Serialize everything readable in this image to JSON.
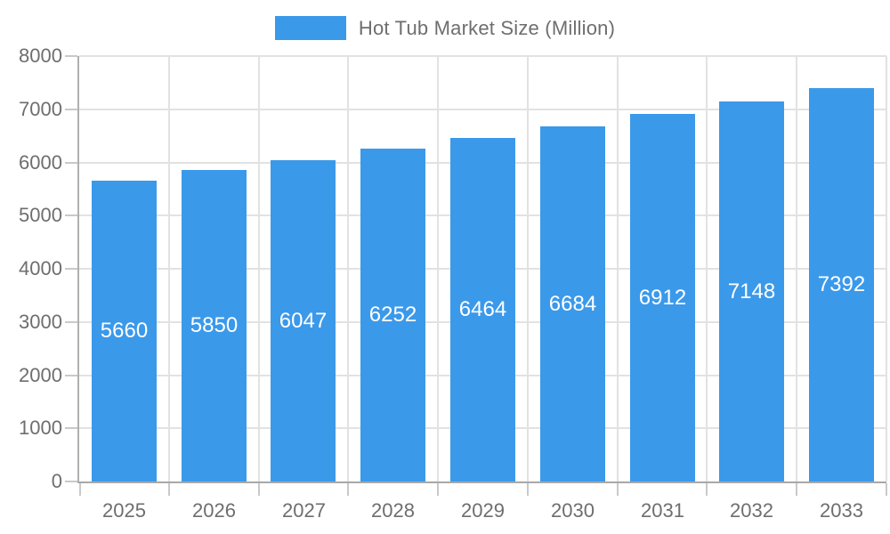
{
  "chart_data": {
    "type": "bar",
    "title": "Hot Tub Market Size (Million)",
    "categories": [
      "2025",
      "2026",
      "2027",
      "2028",
      "2029",
      "2030",
      "2031",
      "2032",
      "2033"
    ],
    "values": [
      5660,
      5850,
      6047,
      6252,
      6464,
      6684,
      6912,
      7148,
      7392
    ],
    "series": [
      {
        "name": "Hot Tub Market Size (Million)",
        "values": [
          5660,
          5850,
          6047,
          6252,
          6464,
          6684,
          6912,
          7148,
          7392
        ]
      }
    ],
    "xlabel": "",
    "ylabel": "",
    "ylim": [
      0,
      8000
    ],
    "yticks": [
      0,
      1000,
      2000,
      3000,
      4000,
      5000,
      6000,
      7000,
      8000
    ],
    "grid": true,
    "legend_position": "top",
    "bar_color": "#3b99ea",
    "value_label_color": "#ffffff",
    "axis_text_color": "#6e6e6e",
    "gridline_color": "#e2e2e2",
    "value_labels_position": "inside-middle"
  },
  "legend": {
    "label": "Hot Tub Market Size (Million)"
  }
}
